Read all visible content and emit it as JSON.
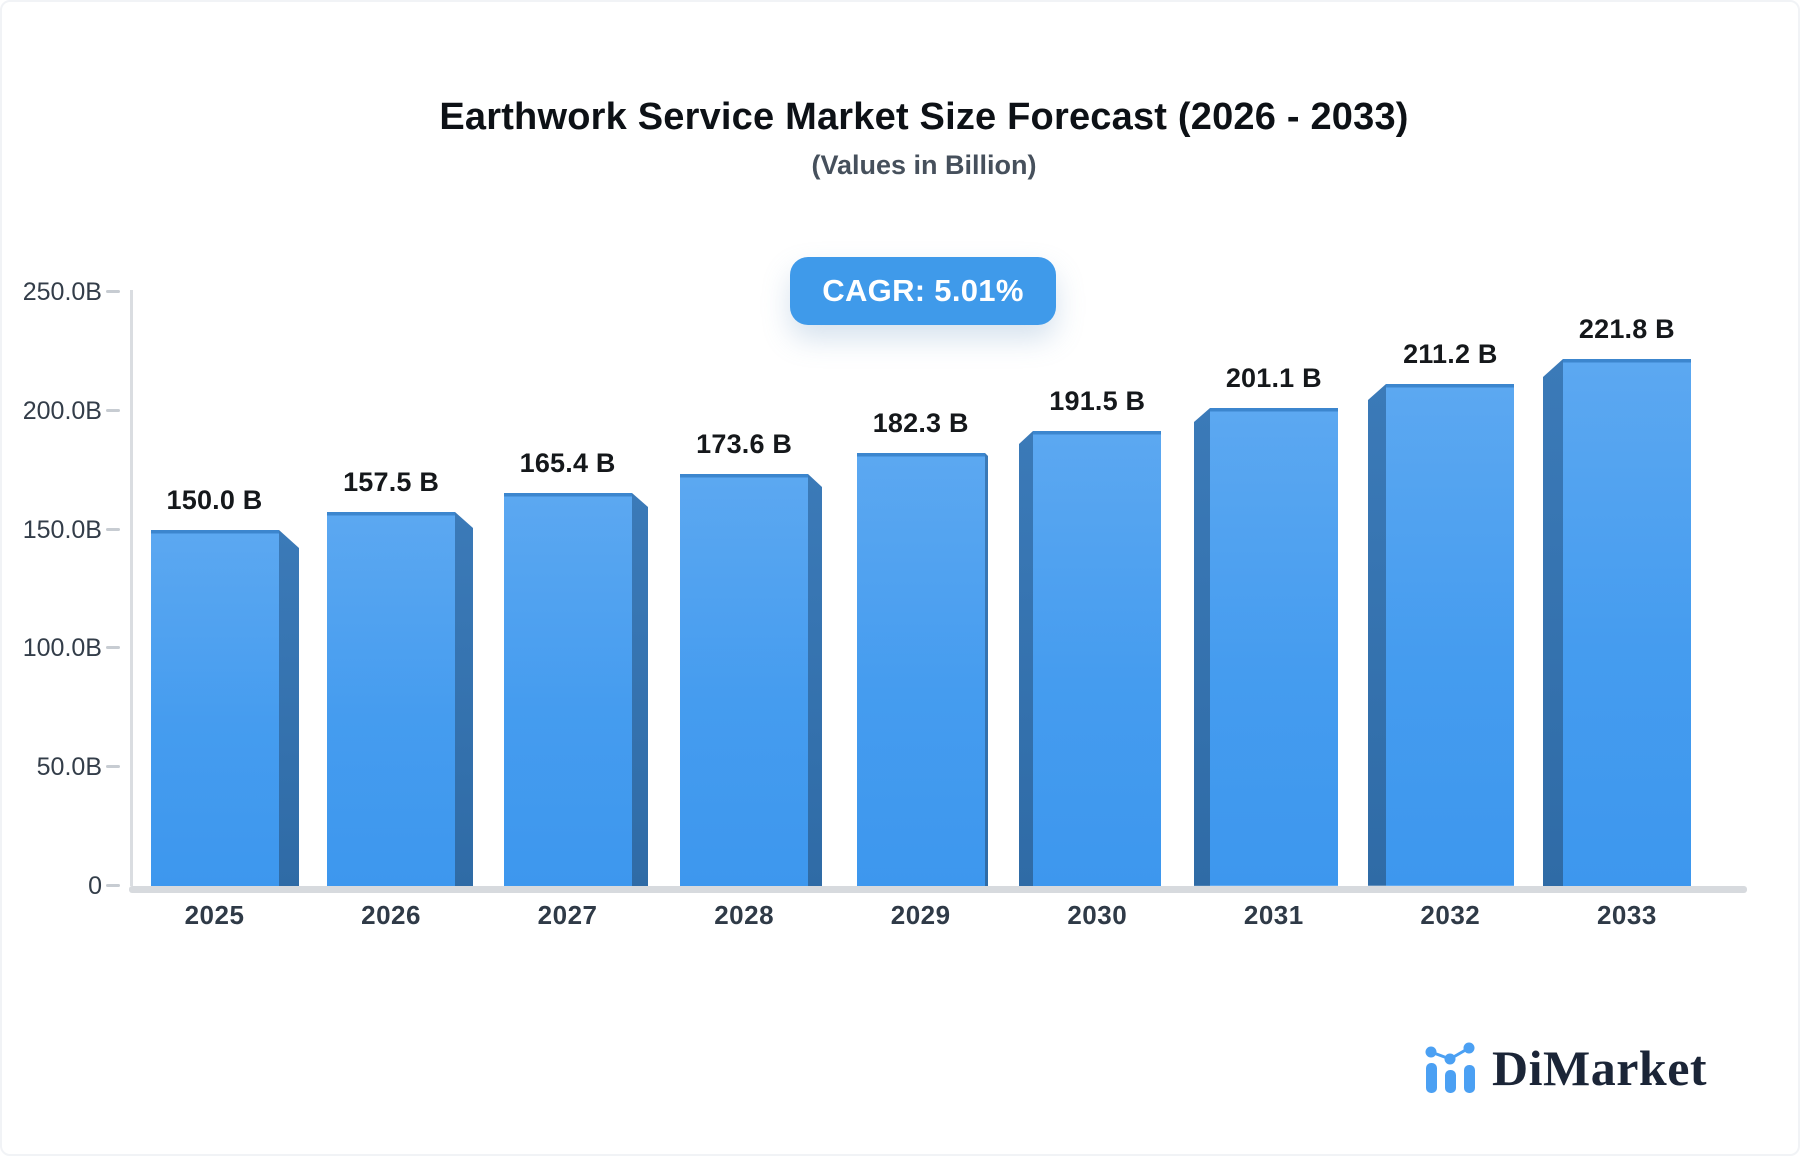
{
  "title": "Earthwork Service Market Size Forecast (2026 - 2033)",
  "subtitle": "(Values in Billion)",
  "cagr_badge": {
    "label": "CAGR: 5.01%"
  },
  "logo": {
    "text": "DiMarket",
    "icon": "bar-line-chart-icon",
    "icon_color": "#4ba0f3",
    "text_color": "#1b2537"
  },
  "colors": {
    "badge_bg": "#3f9aea",
    "badge_text": "#ffffff",
    "bar_face_top": "#5ca8f1",
    "bar_face_mid": "#459cef",
    "bar_face_bottom": "#3d97ee",
    "bar_side_top": "#3b7ab8",
    "bar_side_bottom": "#2f6ba6",
    "bar_top_edge": "#3c86ce",
    "axis_gray": "#d8dbdf",
    "tick_text": "#333d49",
    "value_text": "#15181b",
    "year_text": "#2f3a47"
  },
  "chart_data": {
    "type": "bar",
    "title": "Earthwork Service Market Size Forecast (2026 - 2033)",
    "subtitle": "(Values in Billion)",
    "annotation": "CAGR: 5.01%",
    "unit": "Billion (B)",
    "categories": [
      "2025",
      "2026",
      "2027",
      "2028",
      "2029",
      "2030",
      "2031",
      "2032",
      "2033"
    ],
    "values": [
      150.0,
      157.5,
      165.4,
      173.6,
      182.3,
      191.5,
      201.1,
      211.2,
      221.8
    ],
    "value_labels": [
      "150.0 B",
      "157.5 B",
      "165.4 B",
      "173.6 B",
      "182.3 B",
      "191.5 B",
      "201.1 B",
      "211.2 B",
      "221.8 B"
    ],
    "xlabel": "",
    "ylabel": "",
    "ylim": [
      0,
      250
    ],
    "yticks": [
      {
        "value": 250,
        "label": "250.0B"
      },
      {
        "value": 200,
        "label": "200.0B"
      },
      {
        "value": 150,
        "label": "150.0B"
      },
      {
        "value": 100,
        "label": "100.0B"
      },
      {
        "value": 50,
        "label": "50.0B"
      },
      {
        "value": 0,
        "label": "0"
      }
    ],
    "grid": false,
    "legend": false,
    "style": "3d-perspective-columns"
  }
}
